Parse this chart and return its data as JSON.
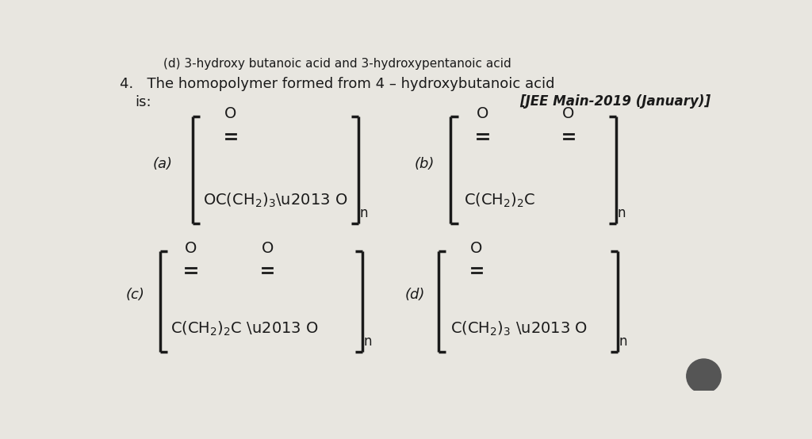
{
  "bg_color": "#e8e6e0",
  "text_color": "#1a1a1a",
  "title_line1": "(d) 3-hydroxy butanoic acid and 3-hydroxypentanoic acid",
  "title_line2": "4.   The homopolymer formed from 4 – hydroxybutanoic acid",
  "title_line3": "      is:",
  "title_ref": "[JEE Main-2019 (January)]",
  "option_a_label": "(a)",
  "option_b_label": "(b)",
  "option_c_label": "(c)",
  "option_d_label": "(d)"
}
